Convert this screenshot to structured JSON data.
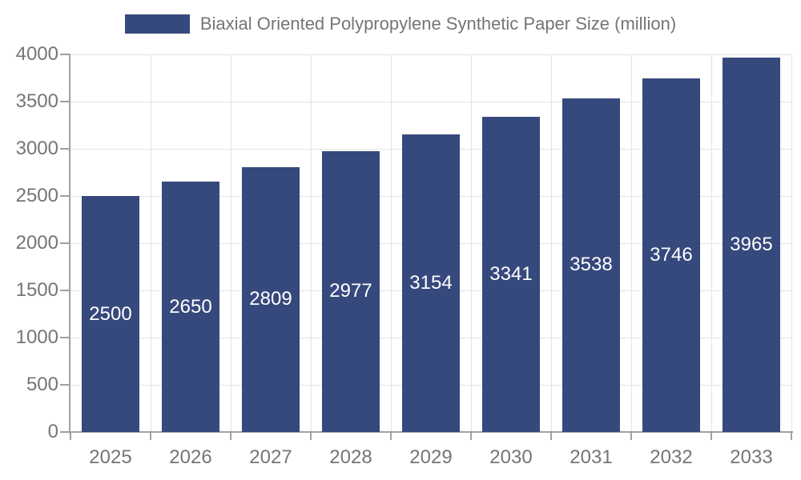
{
  "legend": {
    "label": "Biaxial Oriented Polypropylene Synthetic Paper Size (million)"
  },
  "chart_data": {
    "type": "bar",
    "title": "",
    "series_name": "Biaxial Oriented Polypropylene Synthetic Paper Size (million)",
    "categories": [
      "2025",
      "2026",
      "2027",
      "2028",
      "2029",
      "2030",
      "2031",
      "2032",
      "2033"
    ],
    "values": [
      2500,
      2650,
      2809,
      2977,
      3154,
      3341,
      3538,
      3746,
      3965
    ],
    "xlabel": "",
    "ylabel": "",
    "ylim": [
      0,
      4000
    ],
    "yticks": [
      0,
      500,
      1000,
      1500,
      2000,
      2500,
      3000,
      3500,
      4000
    ],
    "grid": true,
    "legend_position": "top",
    "value_labels": "inside-center",
    "colors": {
      "bar": "#36497d",
      "value_label": "#ffffff",
      "axis": "#a0a0a0",
      "gridline": "#e3e3e3",
      "tick_text": "#757575",
      "background": "#ffffff"
    }
  }
}
